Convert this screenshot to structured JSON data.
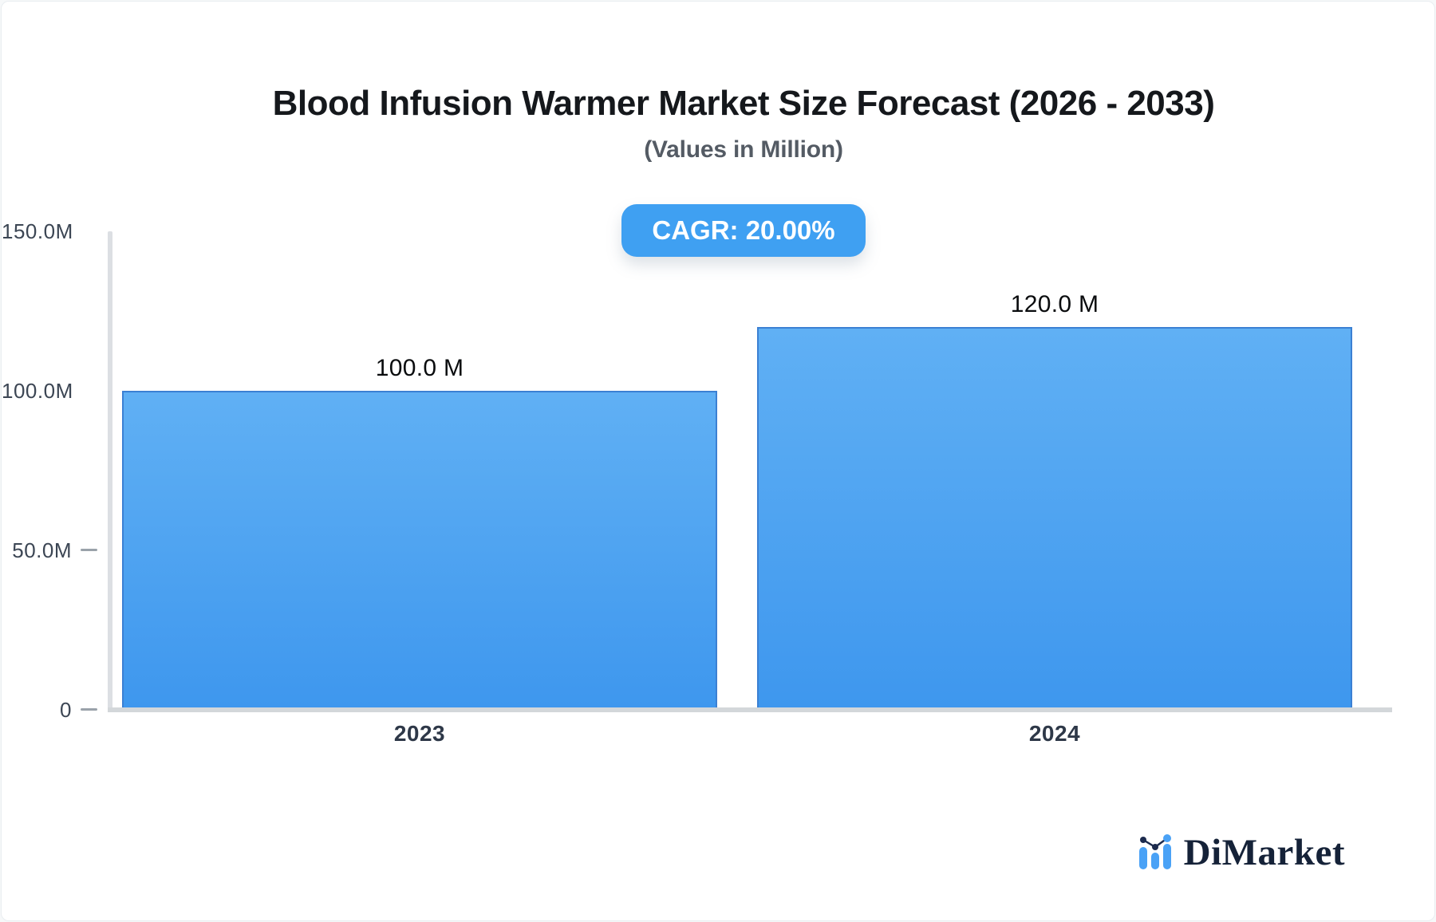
{
  "chart_data": {
    "type": "bar",
    "title": "Blood Infusion Warmer Market Size Forecast (2026 - 2033)",
    "subtitle": "(Values in Million)",
    "cagr_badge": "CAGR: 20.00%",
    "categories": [
      "2023",
      "2024"
    ],
    "values": [
      100,
      120
    ],
    "value_labels": [
      "100.0 M",
      "120.0 M"
    ],
    "xlabel": "",
    "ylabel": "",
    "ylim": [
      0,
      150
    ],
    "y_ticks": [
      {
        "label": "150.0M",
        "value": 150,
        "dash": false
      },
      {
        "label": "100.0M",
        "value": 100,
        "dash": false
      },
      {
        "label": "50.0M",
        "value": 50,
        "dash": true
      },
      {
        "label": "0",
        "value": 0,
        "dash": true
      }
    ],
    "grid": false,
    "legend": "none"
  },
  "branding": {
    "name": "DiMarket"
  },
  "colors": {
    "title": "#15181c",
    "subtitle": "#545b64",
    "badge_bg": "#3fa0f2",
    "badge_text": "#ffffff",
    "axis_label": "#3c4654",
    "x_label": "#2e3848",
    "value_label": "#0a0c0e",
    "axis_line": "#dcdfe3",
    "baseline": "#d3d7da",
    "tick": "#9aa2aa",
    "bar_top": "#60b0f4",
    "bar_bottom": "#3e97ee",
    "bar_border": "#3b80d3",
    "logo_blue": "#4aa2f6",
    "logo_navy": "#1d2b4e",
    "logo_text": "#152238"
  }
}
